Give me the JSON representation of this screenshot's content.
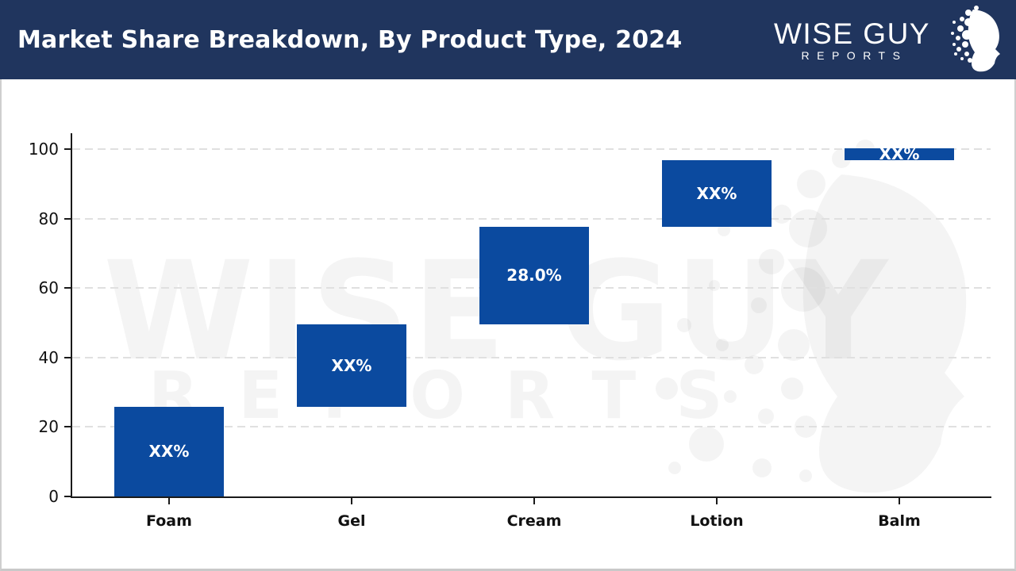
{
  "header": {
    "title": "Market Share Breakdown, By Product Type, 2024",
    "logo": {
      "line1": "WISE GUY",
      "line2": "REPORTS"
    }
  },
  "watermark": {
    "line1": "WISE GUY",
    "line2": "REPORTS"
  },
  "colors": {
    "header_bg": "#20355e",
    "bar": "#0b4a9f",
    "grid": "#e0e0e0",
    "axis": "#1a1a1a",
    "bar_label": "#ffffff",
    "title_text": "#ffffff"
  },
  "chart_data": {
    "type": "bar",
    "subtype": "waterfall",
    "title": "Market Share Breakdown, By Product Type, 2024",
    "categories": [
      "Foam",
      "Gel",
      "Cream",
      "Lotion",
      "Balm"
    ],
    "segments": [
      {
        "category": "Foam",
        "start": 0,
        "end": 25.8,
        "label": "XX%"
      },
      {
        "category": "Gel",
        "start": 25.8,
        "end": 49.6,
        "label": "XX%"
      },
      {
        "category": "Cream",
        "start": 49.6,
        "end": 77.6,
        "label": "28.0%",
        "value": 28.0
      },
      {
        "category": "Lotion",
        "start": 77.6,
        "end": 96.9,
        "label": "XX%"
      },
      {
        "category": "Balm",
        "start": 96.9,
        "end": 100.3,
        "label": "XX%"
      }
    ],
    "yticks": [
      0,
      20,
      40,
      60,
      80,
      100
    ],
    "ylim": [
      0,
      105
    ],
    "xlabel": "",
    "ylabel": "",
    "grid": "horizontal-dashed",
    "legend": "none"
  }
}
